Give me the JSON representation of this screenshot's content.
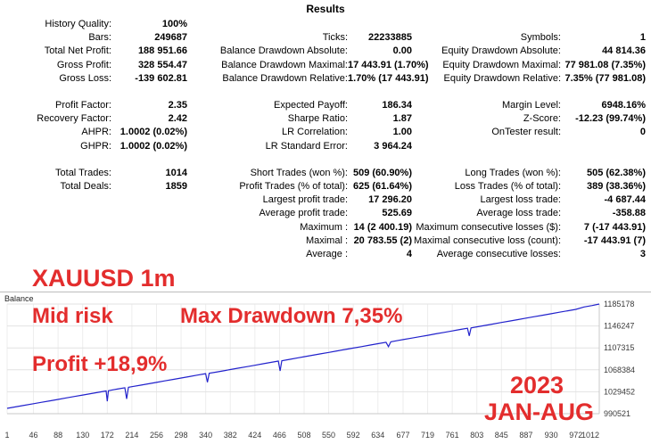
{
  "title": "Results",
  "accent_colors": {
    "overlay_red": "#e32d2d",
    "line_blue": "#2222cc"
  },
  "stats": {
    "rows": [
      {
        "c1l": "History Quality:",
        "c1v": "100%",
        "c2l": "",
        "c2v": "",
        "c3l": "",
        "c3v": ""
      },
      {
        "c1l": "Bars:",
        "c1v": "249687",
        "c2l": "Ticks:",
        "c2v": "22233885",
        "c3l": "Symbols:",
        "c3v": "1"
      },
      {
        "c1l": "Total Net Profit:",
        "c1v": "188 951.66",
        "c2l": "Balance Drawdown Absolute:",
        "c2v": "0.00",
        "c3l": "Equity Drawdown Absolute:",
        "c3v": "44 814.36"
      },
      {
        "c1l": "Gross Profit:",
        "c1v": "328 554.47",
        "c2l": "Balance Drawdown Maximal:",
        "c2v": "17 443.91 (1.70%)",
        "c3l": "Equity Drawdown Maximal:",
        "c3v": "77 981.08 (7.35%)"
      },
      {
        "c1l": "Gross Loss:",
        "c1v": "-139 602.81",
        "c2l": "Balance Drawdown Relative:",
        "c2v": "1.70% (17 443.91)",
        "c3l": "Equity Drawdown Relative:",
        "c3v": "7.35% (77 981.08)"
      },
      {
        "c1l": "",
        "c1v": "",
        "c2l": "",
        "c2v": "",
        "c3l": "",
        "c3v": ""
      },
      {
        "c1l": "Profit Factor:",
        "c1v": "2.35",
        "c2l": "Expected Payoff:",
        "c2v": "186.34",
        "c3l": "Margin Level:",
        "c3v": "6948.16%"
      },
      {
        "c1l": "Recovery Factor:",
        "c1v": "2.42",
        "c2l": "Sharpe Ratio:",
        "c2v": "1.87",
        "c3l": "Z-Score:",
        "c3v": "-12.23 (99.74%)"
      },
      {
        "c1l": "AHPR:",
        "c1v": "1.0002 (0.02%)",
        "c2l": "LR Correlation:",
        "c2v": "1.00",
        "c3l": "OnTester result:",
        "c3v": "0"
      },
      {
        "c1l": "GHPR:",
        "c1v": "1.0002 (0.02%)",
        "c2l": "LR Standard Error:",
        "c2v": "3 964.24",
        "c3l": "",
        "c3v": ""
      },
      {
        "c1l": "",
        "c1v": "",
        "c2l": "",
        "c2v": "",
        "c3l": "",
        "c3v": ""
      },
      {
        "c1l": "Total Trades:",
        "c1v": "1014",
        "c2l": "Short Trades (won %):",
        "c2v": "509 (60.90%)",
        "c3l": "Long Trades (won %):",
        "c3v": "505 (62.38%)"
      },
      {
        "c1l": "Total Deals:",
        "c1v": "1859",
        "c2l": "Profit Trades (% of total):",
        "c2v": "625 (61.64%)",
        "c3l": "Loss Trades (% of total):",
        "c3v": "389 (38.36%)"
      },
      {
        "c1l": "",
        "c1v": "",
        "c2l": "Largest profit trade:",
        "c2v": "17 296.20",
        "c3l": "Largest loss trade:",
        "c3v": "-4 687.44"
      },
      {
        "c1l": "",
        "c1v": "",
        "c2l": "Average profit trade:",
        "c2v": "525.69",
        "c3l": "Average loss trade:",
        "c3v": "-358.88"
      },
      {
        "c1l": "",
        "c1v": "",
        "c2l": "Maximum :",
        "c2v": "14 (2 400.19)",
        "c3l": "Maximum consecutive losses ($):",
        "c3v": "7 (-17 443.91)"
      },
      {
        "c1l": "",
        "c1v": "",
        "c2l": "Maximal :",
        "c2v": "20 783.55 (2)",
        "c3l": "Maximal consecutive loss (count):",
        "c3v": "-17 443.91 (7)"
      },
      {
        "c1l": "",
        "c1v": "",
        "c2l": "Average :",
        "c2v": "4",
        "c3l": "Average consecutive losses:",
        "c3v": "3"
      }
    ]
  },
  "chart_data": {
    "type": "line",
    "title": "Balance",
    "line_color": "#2222cc",
    "xlim": [
      1,
      1012
    ],
    "ylim": [
      990521,
      1185178
    ],
    "x_ticks": [
      1,
      46,
      88,
      130,
      172,
      214,
      256,
      298,
      340,
      382,
      424,
      466,
      508,
      550,
      592,
      634,
      677,
      719,
      761,
      803,
      845,
      887,
      930,
      972,
      1012
    ],
    "y_ticks": [
      1185178,
      1146247,
      1107315,
      1068384,
      1029452,
      990521
    ],
    "grid": true,
    "legend_position": "none",
    "annotations": {
      "symbol": "XAUUSD 1m",
      "risk": "Mid risk",
      "drawdown": "Max Drawdown 7,35%",
      "profit": "Profit +18,9%",
      "year": "2023",
      "period": "JAN-AUG"
    },
    "points": [
      [
        1,
        1000000
      ],
      [
        14,
        1002400
      ],
      [
        28,
        1004900
      ],
      [
        46,
        1008200
      ],
      [
        60,
        1010700
      ],
      [
        74,
        1013300
      ],
      [
        88,
        1015900
      ],
      [
        102,
        1018500
      ],
      [
        116,
        1021000
      ],
      [
        130,
        1023600
      ],
      [
        144,
        1026200
      ],
      [
        158,
        1028700
      ],
      [
        170,
        1030900
      ],
      [
        172,
        1012600
      ],
      [
        174,
        1031400
      ],
      [
        188,
        1034000
      ],
      [
        202,
        1036600
      ],
      [
        205,
        1016800
      ],
      [
        208,
        1037300
      ],
      [
        214,
        1038400
      ],
      [
        228,
        1041000
      ],
      [
        242,
        1043600
      ],
      [
        256,
        1046100
      ],
      [
        270,
        1048700
      ],
      [
        284,
        1051300
      ],
      [
        298,
        1053900
      ],
      [
        312,
        1056400
      ],
      [
        326,
        1059000
      ],
      [
        340,
        1061600
      ],
      [
        343,
        1046200
      ],
      [
        346,
        1062200
      ],
      [
        360,
        1064800
      ],
      [
        374,
        1067300
      ],
      [
        382,
        1068800
      ],
      [
        396,
        1071400
      ],
      [
        410,
        1074000
      ],
      [
        424,
        1076500
      ],
      [
        438,
        1079100
      ],
      [
        452,
        1081700
      ],
      [
        464,
        1083900
      ],
      [
        467,
        1066500
      ],
      [
        470,
        1084600
      ],
      [
        484,
        1087100
      ],
      [
        498,
        1089700
      ],
      [
        508,
        1091600
      ],
      [
        522,
        1094200
      ],
      [
        536,
        1096700
      ],
      [
        550,
        1099300
      ],
      [
        564,
        1101900
      ],
      [
        578,
        1104400
      ],
      [
        592,
        1107000
      ],
      [
        606,
        1109600
      ],
      [
        620,
        1112200
      ],
      [
        634,
        1114700
      ],
      [
        648,
        1117300
      ],
      [
        652,
        1109500
      ],
      [
        656,
        1118100
      ],
      [
        670,
        1120700
      ],
      [
        677,
        1122000
      ],
      [
        691,
        1124500
      ],
      [
        705,
        1127100
      ],
      [
        719,
        1129700
      ],
      [
        733,
        1132300
      ],
      [
        747,
        1134800
      ],
      [
        761,
        1137400
      ],
      [
        775,
        1140000
      ],
      [
        787,
        1142200
      ],
      [
        790,
        1128500
      ],
      [
        793,
        1142800
      ],
      [
        803,
        1144600
      ],
      [
        817,
        1147200
      ],
      [
        831,
        1149800
      ],
      [
        845,
        1152400
      ],
      [
        859,
        1154900
      ],
      [
        873,
        1157500
      ],
      [
        887,
        1160100
      ],
      [
        901,
        1162700
      ],
      [
        915,
        1165200
      ],
      [
        930,
        1168000
      ],
      [
        944,
        1170600
      ],
      [
        958,
        1173200
      ],
      [
        972,
        1175700
      ],
      [
        986,
        1179900
      ],
      [
        1000,
        1182500
      ],
      [
        1012,
        1185178
      ]
    ]
  }
}
